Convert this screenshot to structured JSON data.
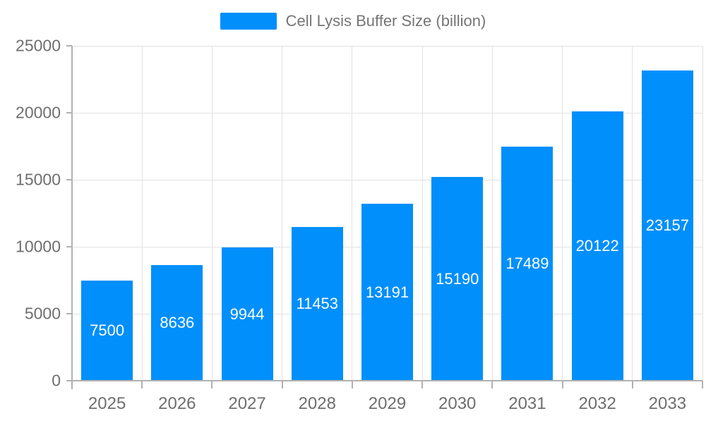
{
  "chart_data": {
    "type": "bar",
    "title": "Cell Lysis Buffer Size (billion)",
    "categories": [
      "2025",
      "2026",
      "2027",
      "2028",
      "2029",
      "2030",
      "2031",
      "2032",
      "2033"
    ],
    "series": [
      {
        "name": "Cell Lysis Buffer Size (billion)",
        "values": [
          7500,
          8636,
          9944,
          11453,
          13191,
          15190,
          17489,
          20122,
          23157
        ]
      }
    ],
    "bar_value_labels": [
      "7500",
      "8636",
      "9944",
      "11453",
      "13191",
      "15190",
      "17489",
      "20122",
      "23157"
    ],
    "xlabel": "",
    "ylabel": "",
    "ylim": [
      0,
      25000
    ],
    "yticks": [
      0,
      5000,
      10000,
      15000,
      20000,
      25000
    ],
    "ytick_labels": [
      "0",
      "5000",
      "10000",
      "15000",
      "20000",
      "25000"
    ],
    "grid": true,
    "legend_position": "top"
  },
  "colors": {
    "bar": "#008FFB",
    "bar_label": "#ffffff",
    "grid": "#e2e2e2",
    "axis": "#b1b1b1",
    "tick": "#b1b1b1",
    "tick_label": "#6e6e6e",
    "legend_label": "#757575",
    "background": "#ffffff"
  }
}
